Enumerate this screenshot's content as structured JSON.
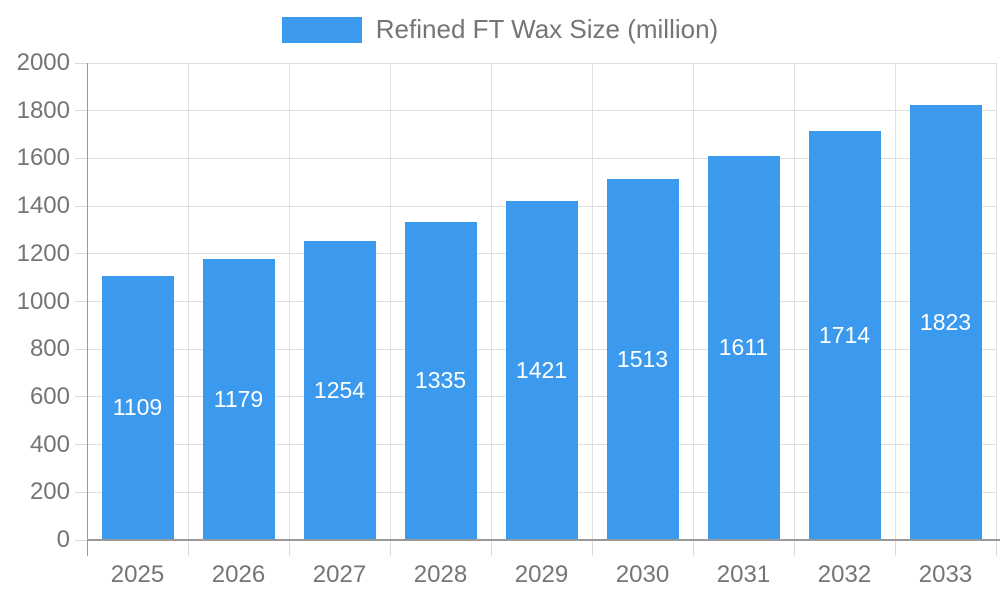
{
  "legend": {
    "label": "Refined FT Wax Size (million)"
  },
  "colors": {
    "bar": "#3B9AEE",
    "grid_line": "#E0E0E0",
    "tick": "#D9D9D9",
    "axis_line": "#999999",
    "axis_text": "#757575",
    "bar_label_text": "#FFFFFF",
    "background": "#FFFFFF"
  },
  "chart_data": {
    "type": "bar",
    "title": "Refined FT Wax Size (million)",
    "categories": [
      "2025",
      "2026",
      "2027",
      "2028",
      "2029",
      "2030",
      "2031",
      "2032",
      "2033"
    ],
    "series": [
      {
        "name": "Refined FT Wax Size (million)",
        "values": [
          1109,
          1179,
          1254,
          1335,
          1421,
          1513,
          1611,
          1714,
          1823
        ]
      }
    ],
    "bar_value_labels": [
      "1109",
      "1179",
      "1254",
      "1335",
      "1421",
      "1513",
      "1611",
      "1714",
      "1823"
    ],
    "xlabel": "",
    "ylabel": "",
    "ylim": [
      0,
      2000
    ],
    "yticks": [
      0,
      200,
      400,
      600,
      800,
      1000,
      1200,
      1400,
      1600,
      1800,
      2000
    ],
    "grid": true,
    "legend_position": "top",
    "value_labels_inside_bars": true
  }
}
